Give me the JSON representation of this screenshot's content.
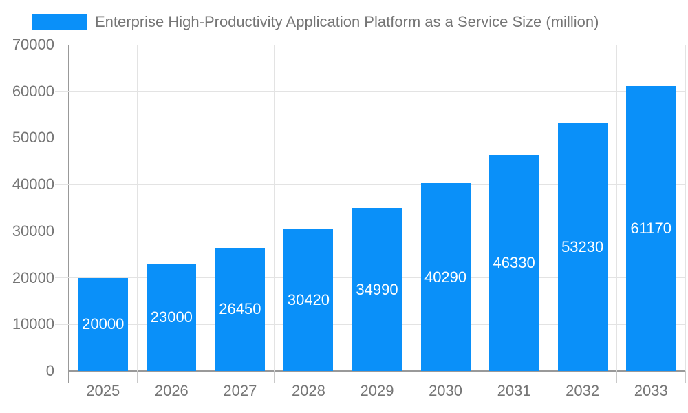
{
  "legend": {
    "label": "Enterprise High-Productivity Application Platform as a Service Size (million)"
  },
  "colors": {
    "bar": "#0a90f9",
    "grid": "#e3e3e3",
    "tick": "#c9c9c9",
    "axis_line": "#999999",
    "axis_text": "#757575",
    "bar_label": "#ffffff",
    "background": "#ffffff"
  },
  "chart_data": {
    "type": "bar",
    "title": "Enterprise High-Productivity Application Platform as a Service Size (million)",
    "categories": [
      "2025",
      "2026",
      "2027",
      "2028",
      "2029",
      "2030",
      "2031",
      "2032",
      "2033"
    ],
    "series": [
      {
        "name": "Enterprise High-Productivity Application Platform as a Service Size (million)",
        "values": [
          20000,
          23000,
          26450,
          30420,
          34990,
          40290,
          46330,
          53230,
          61170
        ]
      }
    ],
    "bar_value_labels": [
      "20000",
      "23000",
      "26450",
      "30420",
      "34990",
      "40290",
      "46330",
      "53230",
      "61170"
    ],
    "xlabel": "",
    "ylabel": "",
    "ylim": [
      0,
      70000
    ],
    "ytick_interval": 10000,
    "ytick_labels": [
      "0",
      "10000",
      "20000",
      "30000",
      "40000",
      "50000",
      "60000",
      "70000"
    ],
    "grid": true,
    "legend_position": "top",
    "bar_label_position": "inside-center"
  }
}
